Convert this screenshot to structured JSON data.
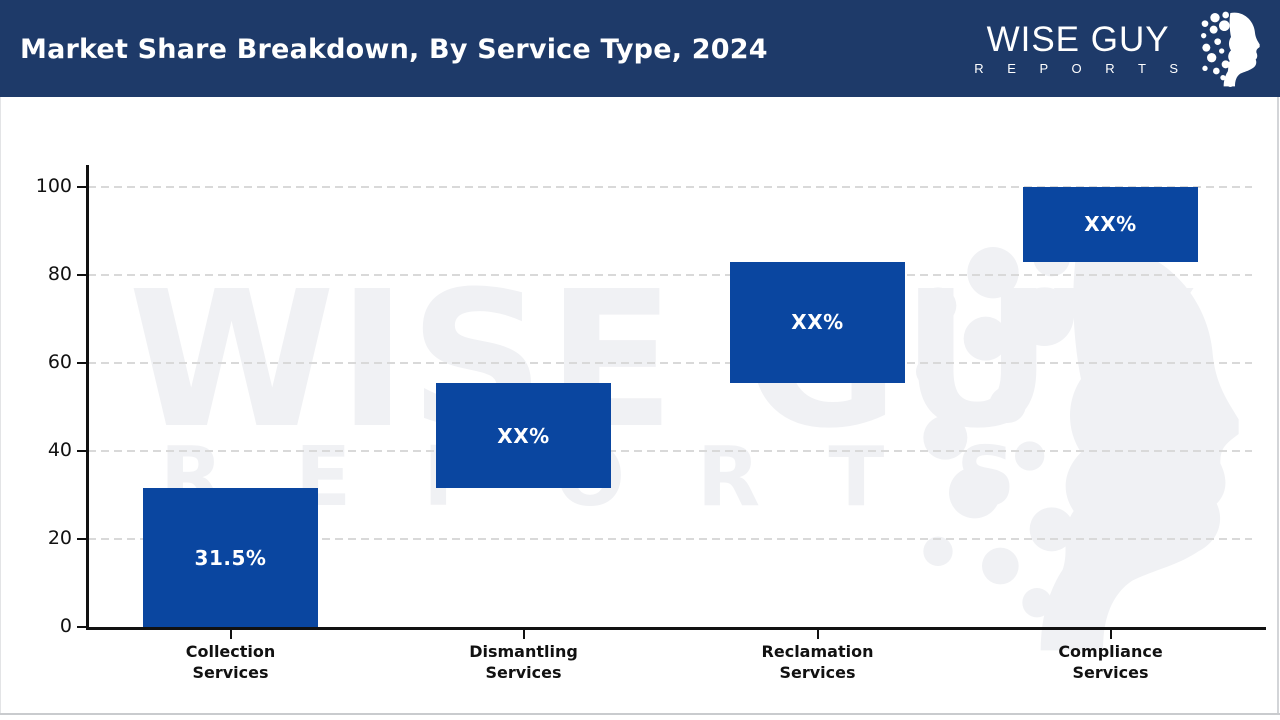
{
  "header": {
    "title": "Market Share Breakdown, By Service Type, 2024",
    "brand": {
      "name": "WISE GUY",
      "tagline": "R E P O R T S"
    }
  },
  "watermark": {
    "brand": "WISE GUY",
    "tagline": "REPORTS"
  },
  "chart_data": {
    "type": "bar",
    "variant": "waterfall",
    "title": "Market Share Breakdown, By Service Type, 2024",
    "categories": [
      "Collection Services",
      "Dismantling Services",
      "Reclamation Services",
      "Compliance Services"
    ],
    "category_lines": [
      [
        "Collection",
        "Services"
      ],
      [
        "Dismantling",
        "Services"
      ],
      [
        "Reclamation",
        "Services"
      ],
      [
        "Compliance",
        "Services"
      ]
    ],
    "segments": [
      {
        "category": "Collection Services",
        "start": 0,
        "end": 31.5,
        "label": "31.5%"
      },
      {
        "category": "Dismantling Services",
        "start": 31.5,
        "end": 55.5,
        "label": "XX%"
      },
      {
        "category": "Reclamation Services",
        "start": 55.5,
        "end": 83,
        "label": "XX%"
      },
      {
        "category": "Compliance Services",
        "start": 83,
        "end": 100,
        "label": "XX%"
      }
    ],
    "yticks": [
      0,
      20,
      40,
      60,
      80,
      100
    ],
    "ylim": [
      0,
      105
    ],
    "xlabel": "",
    "ylabel": "",
    "grid": {
      "horizontal": true,
      "style": "dashed"
    },
    "legend": "none",
    "bar_color": "#0a46a0",
    "bar_label_color": "#ffffff"
  },
  "colors": {
    "header_bg": "#1e3a69",
    "bar": "#0a46a0",
    "axis": "#111111",
    "grid": "#d9d9d9",
    "watermark": "#f0f1f4",
    "page_border": "#c9cbce"
  }
}
